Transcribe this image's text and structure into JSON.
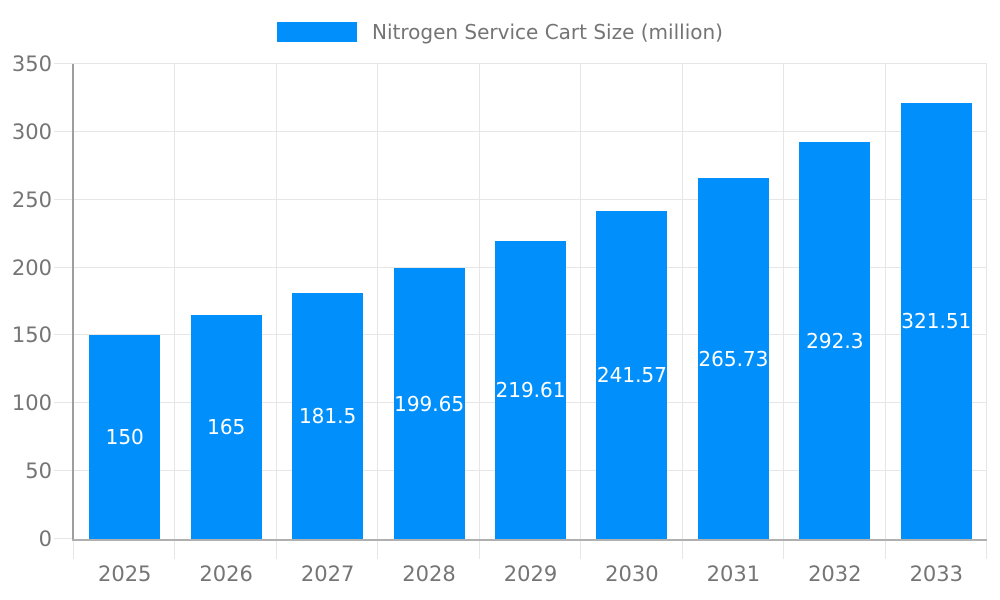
{
  "chart_data": {
    "type": "bar",
    "title": "Nitrogen Service Cart Size (million)",
    "legend": {
      "position": "top",
      "label": "Nitrogen Service Cart Size (million)"
    },
    "categories": [
      "2025",
      "2026",
      "2027",
      "2028",
      "2029",
      "2030",
      "2031",
      "2032",
      "2033"
    ],
    "values": [
      150,
      165,
      181.5,
      199.65,
      219.61,
      241.57,
      265.73,
      292.3,
      321.51
    ],
    "data_labels": [
      "150",
      "165",
      "181.5",
      "199.65",
      "219.61",
      "241.57",
      "265.73",
      "292.3",
      "321.51"
    ],
    "xlabel": "",
    "ylabel": "",
    "ylim": [
      0,
      350
    ],
    "ytick_step": 50,
    "grid": true,
    "layout": {
      "legend_position": "top-center",
      "data_label_position": "inside-center"
    },
    "colors": {
      "bar": "#008FFB",
      "grid": "#e6e6e6",
      "axis": "#a3a3a3",
      "tick_label": "#757575",
      "legend_text": "#757575",
      "data_label": "#ffffff",
      "background": "#ffffff"
    }
  }
}
